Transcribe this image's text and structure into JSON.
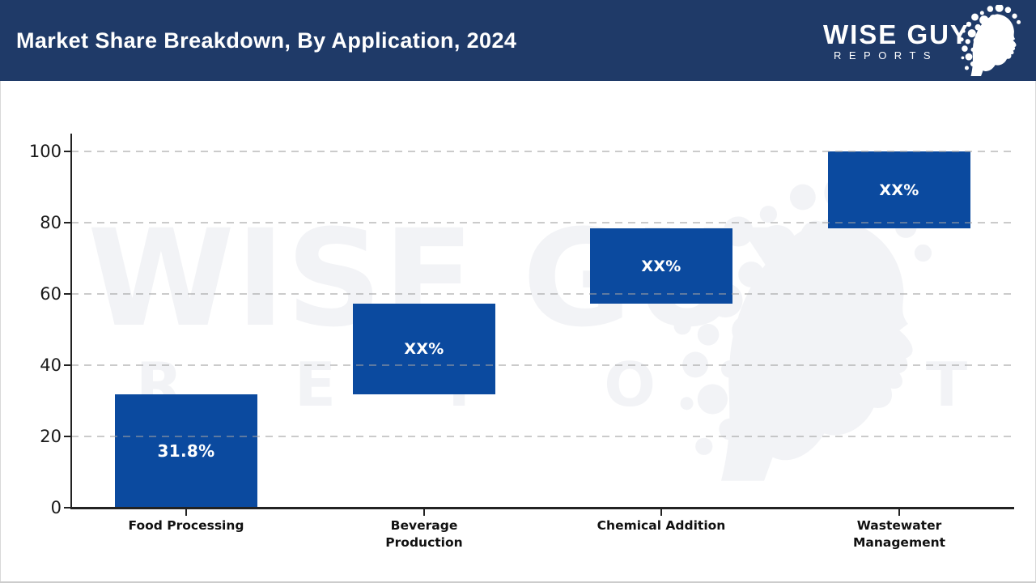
{
  "header": {
    "title": "Market Share Breakdown, By Application, 2024",
    "logo": {
      "wordmark": "WISE GUY",
      "subtext": "REPORTS"
    }
  },
  "watermark": {
    "wordmark": "WISE GUY",
    "subtext": "R E P O R T S"
  },
  "colors": {
    "header_bg": "#1f3a68",
    "bar": "#0b4a9f",
    "bar_label": "#ffffff",
    "axis": "#222222",
    "gridline_dash": "#aaaaaa",
    "watermark": "#f2f3f6"
  },
  "chart_data": {
    "type": "bar",
    "subtype": "waterfall",
    "title": "Market Share Breakdown, By Application, 2024",
    "categories": [
      "Food Processing",
      "Beverage Production",
      "Chemical Addition",
      "Wastewater Management"
    ],
    "bars": [
      {
        "category": "Food Processing",
        "category_lines": [
          "Food Processing"
        ],
        "start": 0,
        "end": 31.8,
        "label": "31.8%"
      },
      {
        "category": "Beverage Production",
        "category_lines": [
          "Beverage",
          "Production"
        ],
        "start": 31.8,
        "end": 57.2,
        "label": "XX%"
      },
      {
        "category": "Chemical Addition",
        "category_lines": [
          "Chemical Addition"
        ],
        "start": 57.2,
        "end": 78.4,
        "label": "XX%"
      },
      {
        "category": "Wastewater Management",
        "category_lines": [
          "Wastewater",
          "Management"
        ],
        "start": 78.4,
        "end": 100,
        "label": "XX%"
      }
    ],
    "xlabel": "",
    "ylabel": "",
    "ylim": [
      0,
      100
    ],
    "yticks": [
      0,
      20,
      40,
      60,
      80,
      100
    ],
    "grid": "horizontal dashed, drawn over bars",
    "legend": "none"
  }
}
